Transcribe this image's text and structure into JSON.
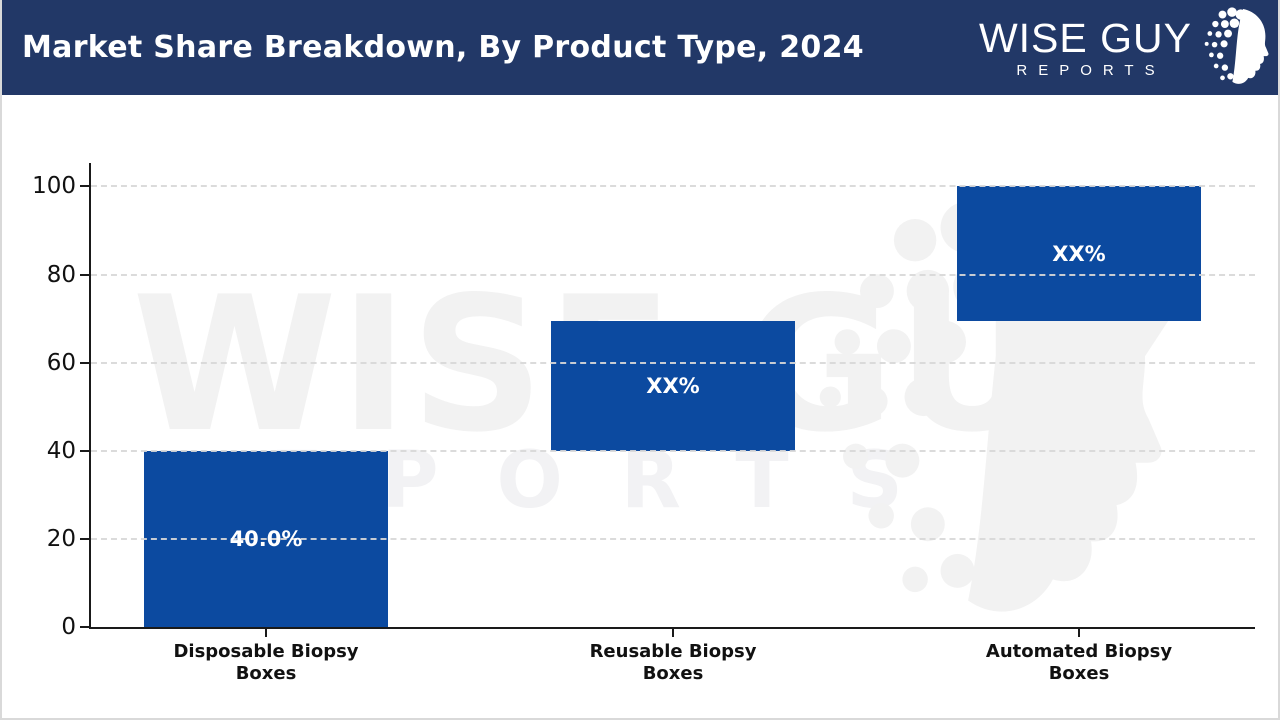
{
  "header": {
    "title": "Market Share Breakdown, By Product Type, 2024",
    "bg_color": "#223867",
    "logo": {
      "line1": "WISE GUY",
      "line2": "REPORTS"
    }
  },
  "watermark": {
    "line1": "WISE GUY",
    "line2": "REPORTS"
  },
  "chart_data": {
    "type": "bar",
    "subtype": "waterfall",
    "title": "Market Share Breakdown, By Product Type, 2024",
    "categories": [
      "Disposable Biopsy Boxes",
      "Reusable Biopsy Boxes",
      "Automated Biopsy Boxes"
    ],
    "category_lines": [
      [
        "Disposable Biopsy",
        "Boxes"
      ],
      [
        "Reusable Biopsy",
        "Boxes"
      ],
      [
        "Automated Biopsy",
        "Boxes"
      ]
    ],
    "bars": [
      {
        "start": 0,
        "end": 40,
        "value_label": "40.0%"
      },
      {
        "start": 40,
        "end": 69.5,
        "value_label": "XX%"
      },
      {
        "start": 69.5,
        "end": 100,
        "value_label": "XX%"
      }
    ],
    "ylim": [
      0,
      100
    ],
    "yticks": [
      0,
      20,
      40,
      60,
      80,
      100
    ],
    "bar_color": "#0c4aa0",
    "grid": {
      "axis": "y",
      "style": "dashed",
      "color": "#d8d8d8"
    },
    "legend": "none",
    "xlabel": "",
    "ylabel": ""
  }
}
